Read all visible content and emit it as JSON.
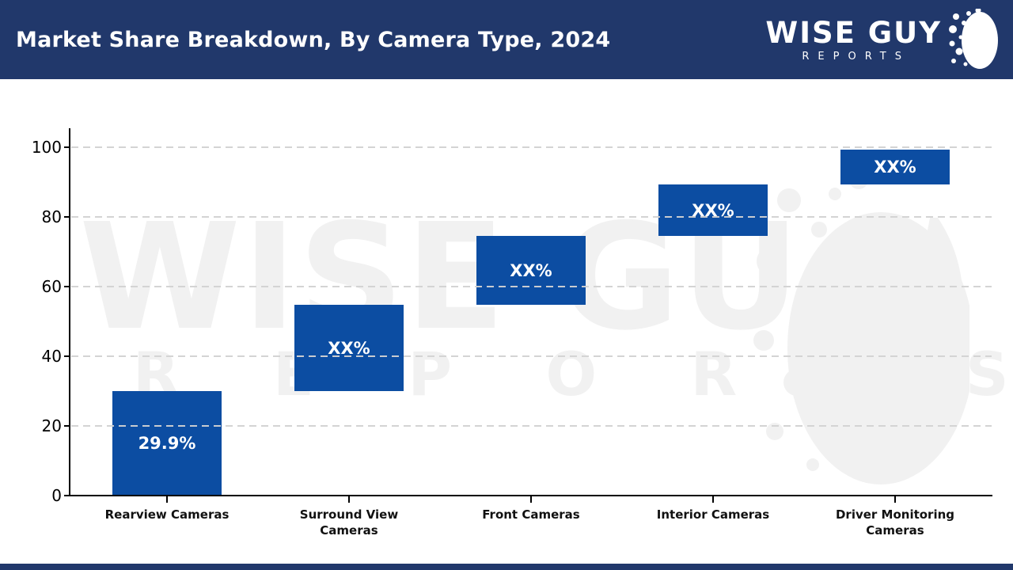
{
  "header": {
    "title": "Market Share Breakdown, By Camera Type, 2024",
    "logo": {
      "line1": "WISE GUY",
      "line2": "REPORTS"
    }
  },
  "watermark": {
    "line1": "WISE GU",
    "line2": "R E P O R T S"
  },
  "footer": {},
  "colors": {
    "header_bg": "#21386b",
    "bar": "#0c4da2",
    "bar_label": "#ffffff",
    "grid": "#d9d9d9",
    "axis": "#000000",
    "watermark": "#f1f1f1"
  },
  "chart_data": {
    "type": "bar",
    "subtype": "waterfall (floating cumulative bars)",
    "title": "Market Share Breakdown, By Camera Type, 2024",
    "xlabel": "",
    "ylabel": "",
    "ylim": [
      0,
      105
    ],
    "yticks": [
      0,
      20,
      40,
      60,
      80,
      100
    ],
    "grid": "horizontal dashed",
    "legend": "none",
    "categories": [
      "Rearview Cameras",
      "Surround View Cameras",
      "Front Cameras",
      "Interior Cameras",
      "Driver Monitoring Cameras"
    ],
    "segments": [
      {
        "category": "Rearview Cameras",
        "start": 0,
        "end": 29.9,
        "label": "29.9%"
      },
      {
        "category": "Surround View Cameras",
        "start": 29.9,
        "end": 54.8,
        "label": "XX%"
      },
      {
        "category": "Front Cameras",
        "start": 54.8,
        "end": 74.5,
        "label": "XX%"
      },
      {
        "category": "Interior Cameras",
        "start": 74.5,
        "end": 89.3,
        "label": "XX%"
      },
      {
        "category": "Driver Monitoring Cameras",
        "start": 89.3,
        "end": 99.3,
        "label": "XX%"
      }
    ]
  }
}
